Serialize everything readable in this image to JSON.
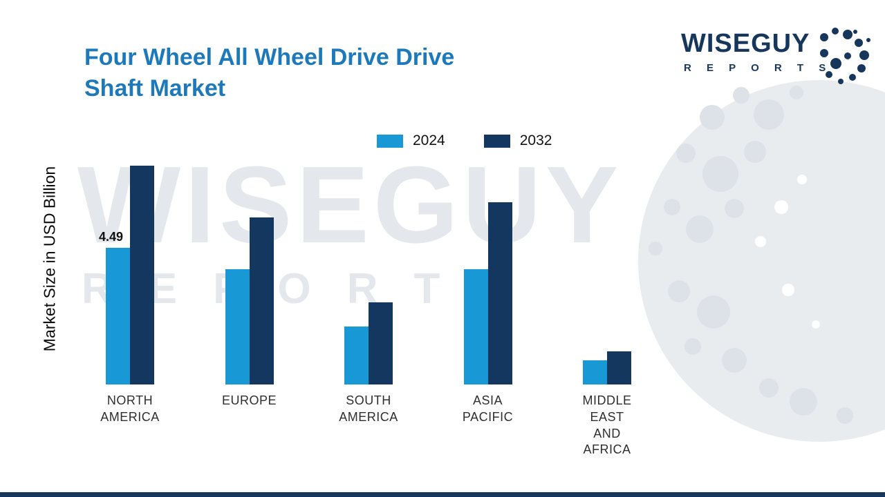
{
  "title": "Four Wheel All Wheel Drive Drive\nShaft Market",
  "logo": {
    "brand": "WISEGUY",
    "sub": "R E P O R T S"
  },
  "watermark": {
    "line1": "WISEGUY",
    "line2": "REPORTS"
  },
  "colors": {
    "title_blue": "#1d79b9",
    "navy": "#14375f",
    "light_blue": "#1899d6",
    "watermark_gray": "#e4e7eb"
  },
  "chart_data": {
    "type": "bar",
    "title": "Four Wheel All Wheel Drive Drive Shaft Market",
    "xlabel": "",
    "ylabel": "Market Size in USD Billion",
    "ylim": [
      0,
      7.5
    ],
    "grid": false,
    "legend_position": "top",
    "categories": [
      "NORTH\nAMERICA",
      "EUROPE",
      "SOUTH\nAMERICA",
      "ASIA\nPACIFIC",
      "MIDDLE\nEAST\nAND\nAFRICA"
    ],
    "series": [
      {
        "name": "2024",
        "color": "#1899d6",
        "values": [
          4.49,
          3.8,
          1.9,
          3.8,
          0.8
        ],
        "data_labels": [
          "4.49",
          "",
          "",
          "",
          ""
        ]
      },
      {
        "name": "2032",
        "color": "#14375f",
        "values": [
          7.2,
          5.5,
          2.7,
          6.0,
          1.1
        ],
        "data_labels": [
          "",
          "",
          "",
          "",
          ""
        ]
      }
    ]
  }
}
